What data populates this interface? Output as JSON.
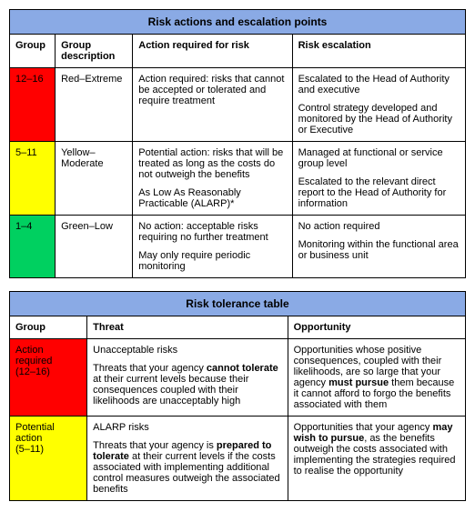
{
  "colors": {
    "title_bg": "#8aaae5",
    "red": "#ff0000",
    "yellow": "#ffff00",
    "green": "#00d060"
  },
  "t1": {
    "title": "Risk actions and escalation points",
    "cols": {
      "c1": "Group",
      "c2": "Group description",
      "c3": "Action required for risk",
      "c4": "Risk escalation"
    },
    "col_widths": [
      "50px",
      "85px",
      "175px",
      "190px"
    ],
    "rows": [
      {
        "group": "12–16",
        "cell_bg": "red",
        "desc": "Red–Extreme",
        "action_p1": "Action required: risks that cannot be accepted or tolerated and require treatment",
        "esc_p1": "Escalated to the Head of Authority and executive",
        "esc_p2": "Control strategy developed and monitored by the Head of Authority or Executive"
      },
      {
        "group": "5–11",
        "cell_bg": "yellow",
        "desc": "Yellow–Moderate",
        "action_p1": "Potential action: risks that will be treated as long as the costs do not outweigh the benefits",
        "action_p2": "As Low As Reasonably Practicable (ALARP)*",
        "esc_p1": "Managed at functional or service group level",
        "esc_p2": "Escalated to the relevant direct report to the Head of Authority for information"
      },
      {
        "group": "1–4",
        "cell_bg": "green",
        "desc": "Green–Low",
        "action_p1": "No action: acceptable risks requiring no further treatment",
        "action_p2": "May only require periodic monitoring",
        "esc_p1": "No action required",
        "esc_p2": "Monitoring within the functional area or business unit"
      }
    ]
  },
  "t2": {
    "title": "Risk tolerance table",
    "cols": {
      "c1": "Group",
      "c2": "Threat",
      "c3": "Opportunity"
    },
    "col_widths": [
      "85px",
      "220px",
      "195px"
    ],
    "rows": [
      {
        "cell_bg": "red",
        "group_l1": "Action required",
        "group_l2": "(12–16)",
        "threat_p1": "Unacceptable risks",
        "threat_p2_pre": "Threats that your agency ",
        "threat_p2_b": "cannot tolerate",
        "threat_p2_post": " at their current levels because their consequences coupled with their likelihoods are unacceptably high",
        "opp_pre": "Opportunities whose positive consequences, coupled with their likelihoods, are so large that your agency ",
        "opp_b": "must pursue",
        "opp_post": " them because it cannot afford to forgo the benefits associated with them"
      },
      {
        "cell_bg": "yellow",
        "group_l1": "Potential action",
        "group_l2": "(5–11)",
        "threat_p1": "ALARP risks",
        "threat_p2_pre": "Threats that your agency is ",
        "threat_p2_b": "prepared to tolerate",
        "threat_p2_post": " at their current levels if the costs associated with implementing additional control measures outweigh the associated benefits",
        "opp_pre": "Opportunities that your agency ",
        "opp_b": "may wish to pursue",
        "opp_post": ", as the benefits outweigh the costs associated with implementing the strategies required to realise the opportunity"
      }
    ]
  }
}
